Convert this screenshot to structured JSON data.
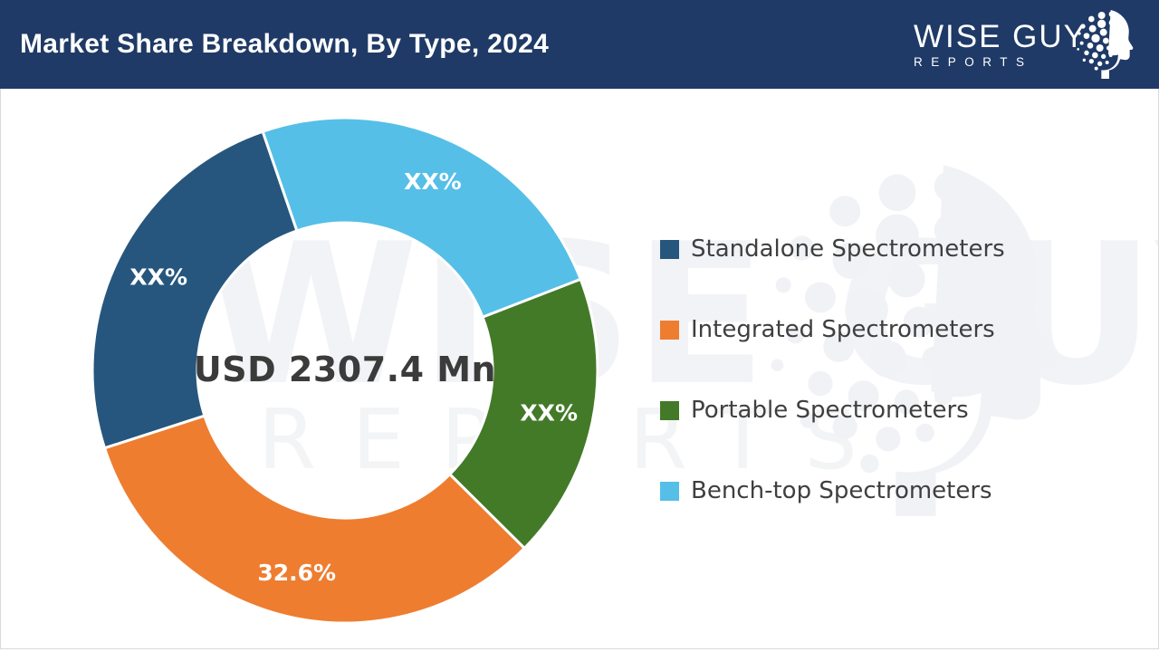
{
  "header": {
    "title": "Market Share Breakdown, By Type, 2024",
    "logo": {
      "line1": "WISE GUY",
      "line2": "REPORTS"
    }
  },
  "watermark": {
    "line1": "WISE GUY",
    "line2": "REPORTS"
  },
  "chart_data": {
    "type": "pie",
    "subtype": "donut",
    "title": "Market Share Breakdown, By Type, 2024",
    "center_label": "USD 2307.4 Mn",
    "legend_position": "right",
    "start_angle_deg": 109,
    "direction": "counterclockwise",
    "slices": [
      {
        "name": "Standalone Spectrometers",
        "displayed_value": "XX%",
        "pct": 24.7,
        "color": "#26567d"
      },
      {
        "name": "Integrated Spectrometers",
        "displayed_value": "32.6%",
        "pct": 32.6,
        "color": "#ee7d30"
      },
      {
        "name": "Portable Spectrometers",
        "displayed_value": "XX%",
        "pct": 18.3,
        "color": "#437a28"
      },
      {
        "name": "Bench-top Spectrometers",
        "displayed_value": "XX%",
        "pct": 24.4,
        "color": "#55bfe7"
      }
    ]
  }
}
